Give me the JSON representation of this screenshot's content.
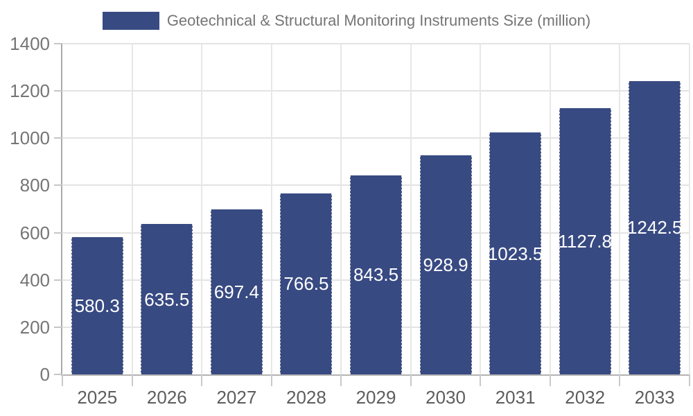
{
  "chart_data": {
    "type": "bar",
    "title": "Geotechnical & Structural Monitoring Instruments Size (million)",
    "legend_position": "top",
    "categories": [
      "2025",
      "2026",
      "2027",
      "2028",
      "2029",
      "2030",
      "2031",
      "2032",
      "2033"
    ],
    "values": [
      580.3,
      635.5,
      697.4,
      766.5,
      843.5,
      928.9,
      1023.5,
      1127.8,
      1242.5
    ],
    "value_labels": [
      "580.3",
      "635.5",
      "697.4",
      "766.5",
      "843.5",
      "928.9",
      "1023.5",
      "1127.8",
      "1242.5"
    ],
    "xlabel": "",
    "ylabel": "",
    "ylim": [
      0,
      1400
    ],
    "ytick_step": 200,
    "ytick_labels": [
      "0",
      "200",
      "400",
      "600",
      "800",
      "1000",
      "1200",
      "1400"
    ],
    "grid": true,
    "bar_color": "#384a82",
    "value_label_color": "#ffffff",
    "ytick_label_color": "#757575",
    "xtick_label_color": "#5d5d5d",
    "gridline_color": "#e3e3e3"
  }
}
